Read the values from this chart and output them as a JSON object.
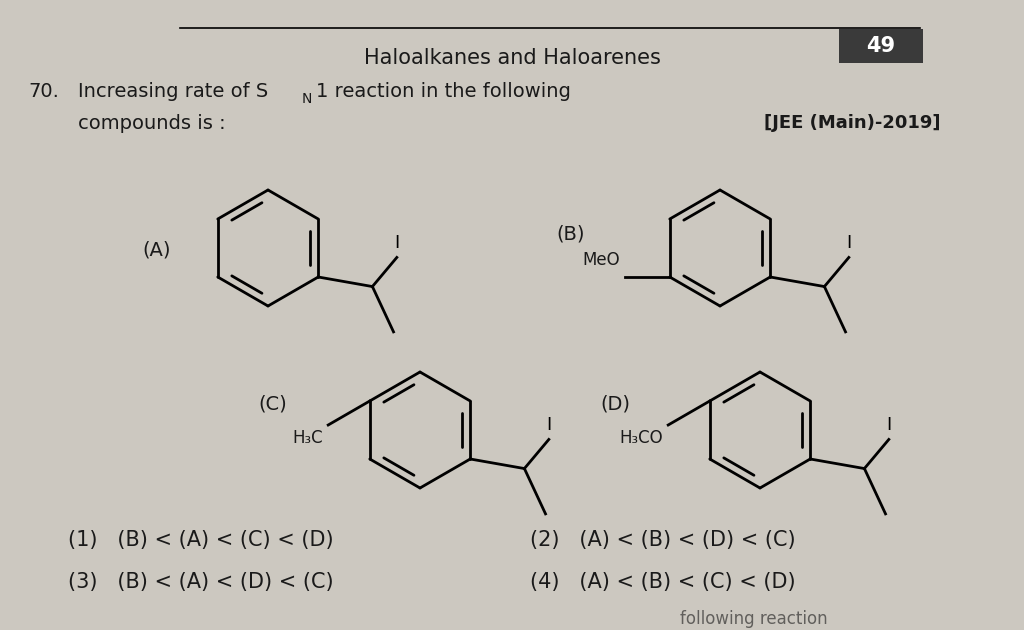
{
  "bg_color": "#ccc8c0",
  "page_bg": "#e8e4dc",
  "title_text": "Haloalkanes and Haloarenes",
  "page_num": "49",
  "q_num": "70.",
  "jee_ref": "[JEE (Main)-2019]",
  "opt1": "(1)   (B) < (A) < (C) < (D)",
  "opt2": "(2)   (A) < (B) < (D) < (C)",
  "opt3": "(3)   (B) < (A) < (D) < (C)",
  "opt4": "(4)   (A) < (B) < (C) < (D)",
  "bottom_text": "following reaction",
  "label_A": "(A)",
  "label_B": "(B)",
  "label_C": "(C)",
  "label_D": "(D)",
  "MeO_label": "MeO",
  "H3C_label": "H₃C",
  "H3CO_label": "H₃CO",
  "text_color": "#1a1a1a"
}
